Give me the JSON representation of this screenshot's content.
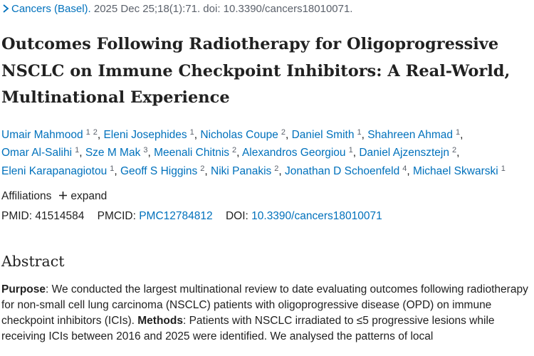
{
  "citation": {
    "journal": "Cancers (Basel).",
    "details": " 2025 Dec 25;18(1):71. doi: 10.3390/cancers18010071."
  },
  "title": "Outcomes Following Radiotherapy for Oligoprogressive NSCLC on Immune Checkpoint Inhibitors: A Real-World, Multinational Experience",
  "author_separator": ",",
  "authors": [
    {
      "name": "Umair Mahmood",
      "affiliations": [
        "1",
        "2"
      ]
    },
    {
      "name": "Eleni Josephides",
      "affiliations": [
        "1"
      ]
    },
    {
      "name": "Nicholas Coupe",
      "affiliations": [
        "2"
      ]
    },
    {
      "name": "Daniel Smith",
      "affiliations": [
        "1"
      ]
    },
    {
      "name": "Shahreen Ahmad",
      "affiliations": [
        "1"
      ]
    },
    {
      "name": "Omar Al-Salihi",
      "affiliations": [
        "1"
      ]
    },
    {
      "name": "Sze M Mak",
      "affiliations": [
        "3"
      ]
    },
    {
      "name": "Meenali Chitnis",
      "affiliations": [
        "2"
      ]
    },
    {
      "name": "Alexandros Georgiou",
      "affiliations": [
        "1"
      ]
    },
    {
      "name": "Daniel Ajzensztejn",
      "affiliations": [
        "2"
      ]
    },
    {
      "name": "Eleni Karapanagiotou",
      "affiliations": [
        "1"
      ]
    },
    {
      "name": "Geoff S Higgins",
      "affiliations": [
        "2"
      ]
    },
    {
      "name": "Niki Panakis",
      "affiliations": [
        "2"
      ]
    },
    {
      "name": "Jonathan D Schoenfeld",
      "affiliations": [
        "4"
      ]
    },
    {
      "name": "Michael Skwarski",
      "affiliations": [
        "1"
      ]
    }
  ],
  "affiliations": {
    "label": "Affiliations",
    "toggle": "expand"
  },
  "identifiers": {
    "pmid_label": "PMID:",
    "pmid": "41514584",
    "pmcid_label": "PMCID:",
    "pmcid": "PMC12784812",
    "doi_label": "DOI:",
    "doi": "10.3390/cancers18010071"
  },
  "abstract": {
    "heading": "Abstract",
    "segments": [
      {
        "text": "Purpose",
        "bold": true
      },
      {
        "text": ": We conducted the largest multinational review to date evaluating outcomes following radiotherapy for non-small cell lung carcinoma (NSCLC) patients with oligoprogressive disease (OPD) on immune checkpoint inhibitors (ICIs). ",
        "bold": false
      },
      {
        "text": "Methods",
        "bold": true
      },
      {
        "text": ": Patients with NSCLC irradiated to ≤5 progressive lesions while receiving ICIs between 2016 and 2025 were identified. We analysed the patterns of local",
        "bold": false
      }
    ]
  }
}
